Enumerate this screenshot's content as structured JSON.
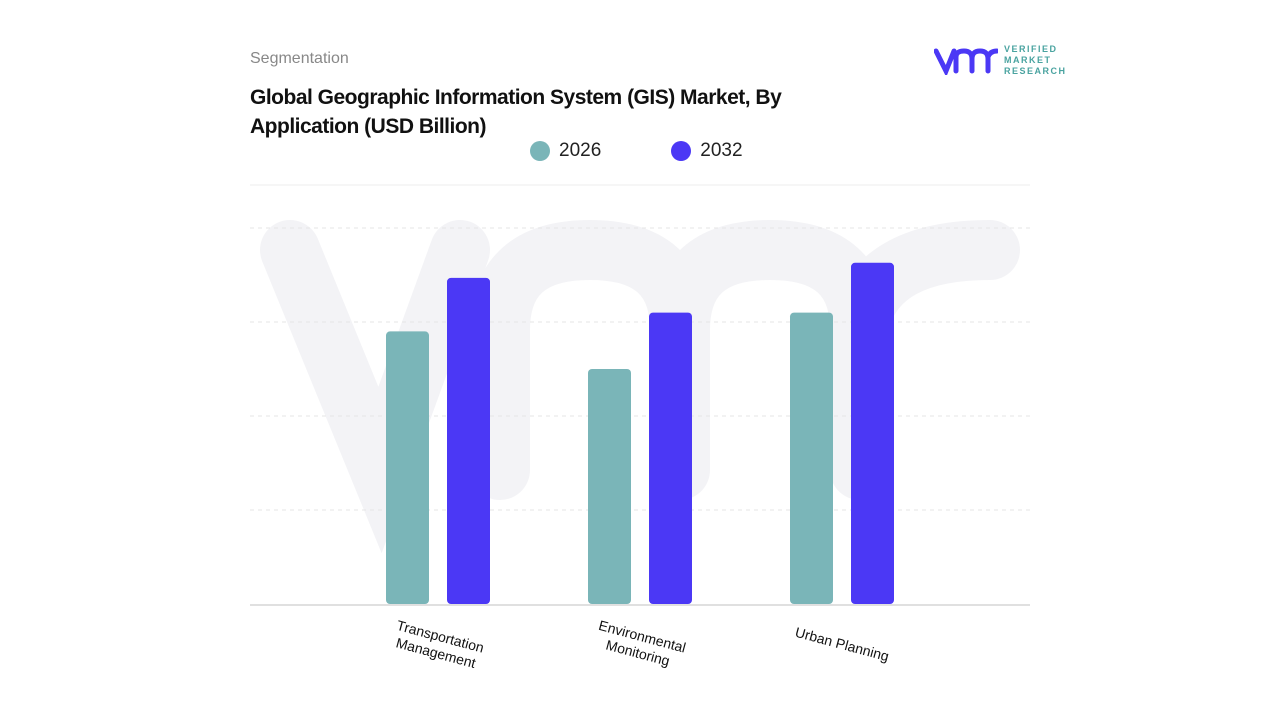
{
  "header": {
    "segment_label": "Segmentation",
    "title": "Global Geographic Information System (GIS) Market, By Application (USD Billion)"
  },
  "logo": {
    "text_lines": [
      "VERIFIED",
      "MARKET",
      "RESEARCH"
    ],
    "brand": "vmr"
  },
  "colors": {
    "s2026": "#7ab5b8",
    "s2032": "#4b38f5",
    "grid": "#e4e4e4"
  },
  "chart_data": {
    "type": "bar",
    "title": "Global Geographic Information System (GIS) Market, By Application (USD Billion)",
    "categories": [
      "Transportation Management",
      "Environmental Monitoring",
      "Urban Planning"
    ],
    "series": [
      {
        "name": "2026",
        "values": [
          2.9,
          2.5,
          3.1
        ]
      },
      {
        "name": "2032",
        "values": [
          3.47,
          3.1,
          3.63
        ]
      }
    ],
    "ylim": [
      0,
      4
    ],
    "grid": true,
    "legend": "top-center",
    "xlabel": "",
    "ylabel": ""
  }
}
